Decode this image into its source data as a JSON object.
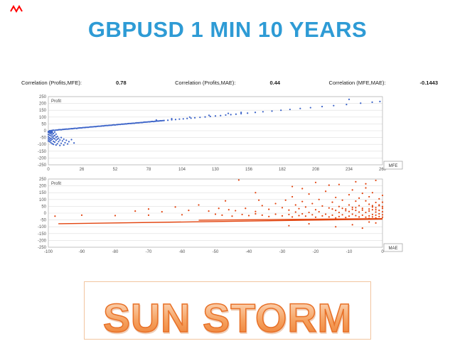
{
  "header": {
    "title": "GBPUSD 1 MIN 10 YEARS"
  },
  "colors": {
    "title": "#2E9BD5",
    "mfe_points": "#3A62C8",
    "mae_points": "#E2440F",
    "wordart_fill": "#F5A15F",
    "wordart_outline": "#ED7D31",
    "wordart_box_border": "#F2C59F",
    "red_mark": "#FF0000"
  },
  "stats": {
    "items": [
      {
        "label": "Correlation (Profits,MFE):",
        "value": "0.78"
      },
      {
        "label": "Correlation (Profits,MAE):",
        "value": "0.44"
      },
      {
        "label": "Correlation (MFE,MAE):",
        "value": "-0.1443"
      }
    ]
  },
  "wordart": {
    "text": "SUN STORM"
  },
  "chart_data": [
    {
      "type": "scatter",
      "name": "Profits vs MFE",
      "ylabel": "Profit",
      "xlabel": "MFE",
      "color": "#3A62C8",
      "xlim": [
        0,
        260
      ],
      "ylim": [
        -250,
        250
      ],
      "xticks": [
        0,
        26,
        52,
        78,
        104,
        130,
        156,
        182,
        208,
        234,
        260
      ],
      "yticks": [
        250,
        200,
        150,
        100,
        50,
        0,
        -50,
        -100,
        -150,
        -200,
        -250
      ],
      "grid": "horizontal",
      "legend": "none",
      "points": [
        [
          1,
          0
        ],
        [
          2,
          1
        ],
        [
          3,
          3
        ],
        [
          4,
          4
        ],
        [
          5,
          3
        ],
        [
          6,
          5
        ],
        [
          7,
          5
        ],
        [
          8,
          7
        ],
        [
          9,
          8
        ],
        [
          10,
          7
        ],
        [
          11,
          9
        ],
        [
          12,
          10
        ],
        [
          13,
          11
        ],
        [
          14,
          12
        ],
        [
          15,
          12
        ],
        [
          16,
          13
        ],
        [
          17,
          14
        ],
        [
          18,
          15
        ],
        [
          19,
          15
        ],
        [
          20,
          17
        ],
        [
          21,
          18
        ],
        [
          22,
          17
        ],
        [
          23,
          19
        ],
        [
          24,
          20
        ],
        [
          25,
          21
        ],
        [
          26,
          21
        ],
        [
          27,
          23
        ],
        [
          28,
          23
        ],
        [
          29,
          24
        ],
        [
          30,
          25
        ],
        [
          31,
          25
        ],
        [
          32,
          27
        ],
        [
          33,
          28
        ],
        [
          34,
          28
        ],
        [
          35,
          29
        ],
        [
          36,
          30
        ],
        [
          37,
          30
        ],
        [
          38,
          32
        ],
        [
          39,
          33
        ],
        [
          40,
          33
        ],
        [
          41,
          34
        ],
        [
          42,
          35
        ],
        [
          43,
          35
        ],
        [
          44,
          37
        ],
        [
          45,
          38
        ],
        [
          46,
          38
        ],
        [
          47,
          39
        ],
        [
          48,
          40
        ],
        [
          49,
          40
        ],
        [
          50,
          42
        ],
        [
          51,
          43
        ],
        [
          52,
          42
        ],
        [
          53,
          44
        ],
        [
          54,
          45
        ],
        [
          55,
          46
        ],
        [
          56,
          46
        ],
        [
          57,
          48
        ],
        [
          58,
          48
        ],
        [
          59,
          49
        ],
        [
          60,
          50
        ],
        [
          61,
          50
        ],
        [
          62,
          52
        ],
        [
          63,
          53
        ],
        [
          64,
          53
        ],
        [
          65,
          54
        ],
        [
          66,
          55
        ],
        [
          67,
          55
        ],
        [
          68,
          57
        ],
        [
          69,
          58
        ],
        [
          70,
          58
        ],
        [
          71,
          59
        ],
        [
          72,
          60
        ],
        [
          73,
          60
        ],
        [
          74,
          62
        ],
        [
          75,
          63
        ],
        [
          76,
          63
        ],
        [
          77,
          64
        ],
        [
          78,
          65
        ],
        [
          79,
          65
        ],
        [
          80,
          67
        ],
        [
          81,
          68
        ],
        [
          82,
          67
        ],
        [
          83,
          69
        ],
        [
          84,
          70
        ],
        [
          85,
          71
        ],
        [
          86,
          71
        ],
        [
          87,
          73
        ],
        [
          88,
          73
        ],
        [
          89,
          74
        ],
        [
          90,
          75
        ],
        [
          93,
          77
        ],
        [
          96,
          80
        ],
        [
          99,
          82
        ],
        [
          102,
          85
        ],
        [
          105,
          87
        ],
        [
          108,
          90
        ],
        [
          111,
          92
        ],
        [
          114,
          95
        ],
        [
          118,
          98
        ],
        [
          122,
          101
        ],
        [
          126,
          105
        ],
        [
          130,
          108
        ],
        [
          134,
          111
        ],
        [
          138,
          115
        ],
        [
          142,
          118
        ],
        [
          146,
          121
        ],
        [
          150,
          125
        ],
        [
          155,
          129
        ],
        [
          161,
          134
        ],
        [
          167,
          139
        ],
        [
          174,
          144
        ],
        [
          181,
          150
        ],
        [
          188,
          156
        ],
        [
          196,
          163
        ],
        [
          204,
          169
        ],
        [
          213,
          177
        ],
        [
          222,
          184
        ],
        [
          232,
          192
        ],
        [
          243,
          202
        ],
        [
          252,
          209
        ],
        [
          258,
          214
        ],
        [
          234,
          230
        ],
        [
          110,
          100
        ],
        [
          125,
          113
        ],
        [
          96,
          88
        ],
        [
          84,
          78
        ],
        [
          140,
          127
        ],
        [
          150,
          134
        ],
        [
          0,
          -28
        ],
        [
          0,
          -45
        ],
        [
          1,
          -33
        ],
        [
          1,
          -52
        ],
        [
          1,
          -66
        ],
        [
          2,
          -38
        ],
        [
          2,
          -58
        ],
        [
          2,
          -72
        ],
        [
          3,
          -30
        ],
        [
          3,
          -47
        ],
        [
          3,
          -63
        ],
        [
          4,
          -40
        ],
        [
          4,
          -55
        ],
        [
          4,
          -78
        ],
        [
          5,
          -35
        ],
        [
          5,
          -60
        ],
        [
          5,
          -84
        ],
        [
          6,
          -48
        ],
        [
          6,
          -70
        ],
        [
          7,
          -42
        ],
        [
          7,
          -62
        ],
        [
          8,
          -55
        ],
        [
          8,
          -80
        ],
        [
          9,
          -68
        ],
        [
          10,
          -50
        ],
        [
          10,
          -92
        ],
        [
          11,
          -75
        ],
        [
          12,
          -62
        ],
        [
          13,
          -88
        ],
        [
          14,
          -70
        ],
        [
          15,
          -97
        ],
        [
          16,
          -80
        ],
        [
          18,
          -65
        ],
        [
          20,
          -90
        ],
        [
          6,
          -105
        ],
        [
          9,
          -108
        ],
        [
          3,
          -95
        ],
        [
          2,
          -88
        ],
        [
          1,
          -80
        ],
        [
          0,
          -60
        ],
        [
          0,
          -75
        ],
        [
          4,
          -100
        ],
        [
          12,
          -105
        ],
        [
          7,
          -95
        ],
        [
          0,
          -5
        ],
        [
          0,
          -12
        ],
        [
          1,
          -8
        ],
        [
          1,
          -18
        ],
        [
          2,
          -12
        ],
        [
          2,
          -22
        ],
        [
          3,
          -15
        ],
        [
          4,
          -20
        ],
        [
          5,
          -10
        ],
        [
          6,
          -25
        ],
        [
          3,
          -5
        ],
        [
          2,
          -3
        ]
      ]
    },
    {
      "type": "scatter",
      "name": "Profits vs MAE",
      "ylabel": "Profit",
      "xlabel": "MAE",
      "color": "#E2440F",
      "xlim": [
        -100,
        0
      ],
      "ylim": [
        -250,
        250
      ],
      "xticks": [
        -100,
        -90,
        -80,
        -70,
        -60,
        -50,
        -40,
        -30,
        -20,
        -10,
        0
      ],
      "yticks": [
        250,
        200,
        150,
        100,
        50,
        0,
        -50,
        -100,
        -150,
        -200,
        -250
      ],
      "grid": "horizontal",
      "legend": "none",
      "trend_lines": [
        {
          "x1": -97,
          "y1": -78,
          "x2": 0,
          "y2": -44
        },
        {
          "x1": -55,
          "y1": -52,
          "x2": 0,
          "y2": -40
        }
      ],
      "points": [
        [
          -44,
          18
        ],
        [
          -41,
          35
        ],
        [
          -38,
          12
        ],
        [
          -36,
          55
        ],
        [
          -34,
          28
        ],
        [
          -32,
          70
        ],
        [
          -30,
          40
        ],
        [
          -29,
          95
        ],
        [
          -28,
          22
        ],
        [
          -27,
          120
        ],
        [
          -26,
          60
        ],
        [
          -25,
          33
        ],
        [
          -24,
          85
        ],
        [
          -23,
          45
        ],
        [
          -22,
          140
        ],
        [
          -21,
          70
        ],
        [
          -20,
          25
        ],
        [
          -19,
          100
        ],
        [
          -18,
          52
        ],
        [
          -17,
          160
        ],
        [
          -16,
          38
        ],
        [
          -15,
          80
        ],
        [
          -14,
          115
        ],
        [
          -13,
          48
        ],
        [
          -12,
          95
        ],
        [
          -11,
          30
        ],
        [
          -10,
          135
        ],
        [
          -10,
          60
        ],
        [
          -9,
          170
        ],
        [
          -9,
          42
        ],
        [
          -8,
          88
        ],
        [
          -8,
          20
        ],
        [
          -7,
          110
        ],
        [
          -7,
          55
        ],
        [
          -6,
          145
        ],
        [
          -6,
          35
        ],
        [
          -5,
          90
        ],
        [
          -5,
          185
        ],
        [
          -4,
          65
        ],
        [
          -4,
          120
        ],
        [
          -3,
          45
        ],
        [
          -3,
          150
        ],
        [
          -2,
          78
        ],
        [
          -2,
          25
        ],
        [
          -1,
          105
        ],
        [
          -1,
          55
        ],
        [
          0,
          130
        ],
        [
          0,
          35
        ],
        [
          0,
          80
        ],
        [
          -37,
          95
        ],
        [
          -74,
          15
        ],
        [
          -70,
          30
        ],
        [
          -66,
          10
        ],
        [
          -62,
          45
        ],
        [
          -58,
          20
        ],
        [
          -55,
          60
        ],
        [
          -52,
          15
        ],
        [
          -49,
          35
        ],
        [
          -47,
          90
        ],
        [
          -46,
          25
        ],
        [
          -43,
          243
        ],
        [
          -20,
          225
        ],
        [
          -13,
          210
        ],
        [
          -8,
          230
        ],
        [
          -27,
          195
        ],
        [
          -16,
          205
        ],
        [
          -5,
          215
        ],
        [
          -2,
          240
        ],
        [
          -38,
          150
        ],
        [
          -24,
          180
        ],
        [
          -5,
          -30
        ],
        [
          -5,
          5
        ],
        [
          -4,
          -20
        ],
        [
          -4,
          15
        ],
        [
          -4,
          -38
        ],
        [
          -3,
          -10
        ],
        [
          -3,
          25
        ],
        [
          -3,
          -28
        ],
        [
          -2,
          -15
        ],
        [
          -2,
          8
        ],
        [
          -2,
          -35
        ],
        [
          -1,
          -5
        ],
        [
          -1,
          20
        ],
        [
          -1,
          -25
        ],
        [
          0,
          -12
        ],
        [
          0,
          10
        ],
        [
          0,
          -30
        ],
        [
          0,
          48
        ],
        [
          -1,
          60
        ],
        [
          -2,
          40
        ],
        [
          -3,
          55
        ],
        [
          -4,
          30
        ],
        [
          -6,
          -15
        ],
        [
          -6,
          22
        ],
        [
          -7,
          -28
        ],
        [
          -7,
          8
        ],
        [
          -8,
          -18
        ],
        [
          -8,
          40
        ],
        [
          -9,
          -8
        ],
        [
          -9,
          28
        ],
        [
          -10,
          -22
        ],
        [
          -10,
          12
        ],
        [
          -11,
          -32
        ],
        [
          -11,
          18
        ],
        [
          -12,
          -12
        ],
        [
          -12,
          35
        ],
        [
          -13,
          -25
        ],
        [
          -13,
          5
        ],
        [
          -14,
          -35
        ],
        [
          -14,
          20
        ],
        [
          -15,
          -15
        ],
        [
          -15,
          30
        ],
        [
          -16,
          -28
        ],
        [
          -17,
          -8
        ],
        [
          -18,
          -20
        ],
        [
          -19,
          10
        ],
        [
          -20,
          -30
        ],
        [
          -21,
          -12
        ],
        [
          -22,
          5
        ],
        [
          -23,
          -22
        ],
        [
          -24,
          -5
        ],
        [
          -25,
          -18
        ],
        [
          -26,
          8
        ],
        [
          -27,
          -28
        ],
        [
          -28,
          -10
        ],
        [
          -30,
          -20
        ],
        [
          -32,
          -8
        ],
        [
          -34,
          -25
        ],
        [
          -36,
          -15
        ],
        [
          -38,
          -5
        ],
        [
          -40,
          -18
        ],
        [
          -42,
          -10
        ],
        [
          -45,
          -22
        ],
        [
          -48,
          -15
        ],
        [
          -50,
          -8
        ],
        [
          -60,
          -12
        ],
        [
          -70,
          -15
        ],
        [
          -80,
          -18
        ],
        [
          -90,
          -15
        ],
        [
          -98,
          -22
        ],
        [
          -4,
          -65
        ],
        [
          -9,
          -85
        ],
        [
          -14,
          -100
        ],
        [
          -2,
          -72
        ],
        [
          -22,
          -78
        ],
        [
          -28,
          -92
        ],
        [
          -6,
          -110
        ]
      ]
    }
  ]
}
